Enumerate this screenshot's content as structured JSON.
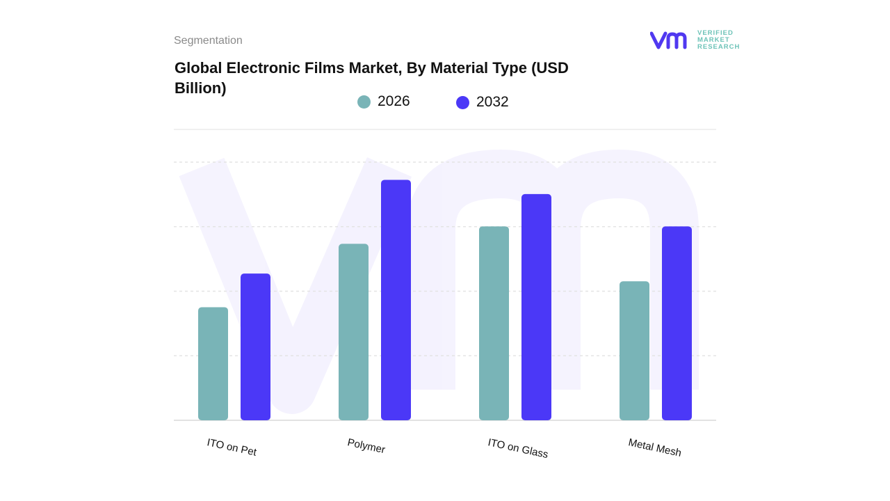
{
  "header": {
    "section": "Segmentation",
    "title": "Global Electronic Films Market, By Material Type (USD Billion)"
  },
  "logo": {
    "lines": [
      "VERIFIED",
      "MARKET",
      "RESEARCH"
    ],
    "mark": "vmr"
  },
  "chart_data": {
    "type": "bar",
    "title": "Global Electronic Films Market, By Material Type (USD Billion)",
    "categories": [
      "ITO  on Pet",
      "Polymer",
      "ITO  on Glass",
      "Metal Mesh"
    ],
    "series": [
      {
        "name": "2026",
        "color": "#79b4b7",
        "values": [
          1.75,
          2.73,
          3.0,
          2.15
        ]
      },
      {
        "name": "2032",
        "color": "#4b38f7",
        "values": [
          2.27,
          3.72,
          3.5,
          3.0
        ]
      }
    ],
    "xlabel": "",
    "ylabel": "",
    "ylim": [
      0,
      4.5
    ],
    "y_tick_labels_shown": false,
    "grid": true,
    "legend": "top-center"
  }
}
